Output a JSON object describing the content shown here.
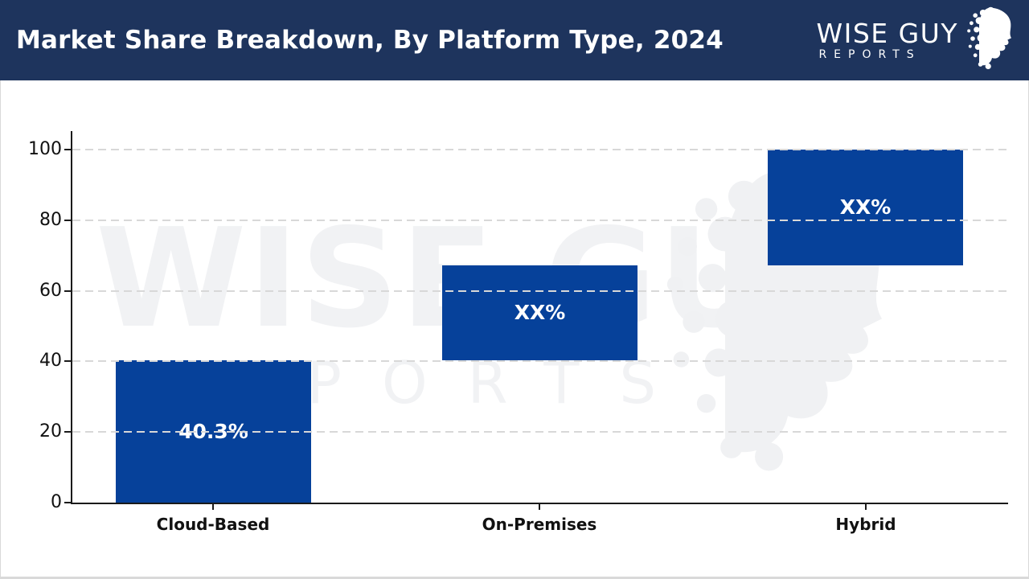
{
  "header": {
    "title": "Market Share Breakdown, By Platform Type, 2024",
    "bg_color": "#1e345d",
    "logo": {
      "line1": "WISE GUY",
      "line2": "REPORTS"
    }
  },
  "watermark": {
    "line1": "WISE GUY",
    "line2": "REPORTS"
  },
  "chart_data": {
    "type": "bar",
    "variant": "floating-segment-breakdown",
    "title": "Market Share Breakdown, By Platform Type, 2024",
    "categories": [
      "Cloud-Based",
      "On-Premises",
      "Hybrid"
    ],
    "segments": [
      {
        "category": "Cloud-Based",
        "label": "40.3%",
        "start": 0,
        "end": 40.3
      },
      {
        "category": "On-Premises",
        "label": "XX%",
        "start": 40.3,
        "end": 67.3
      },
      {
        "category": "Hybrid",
        "label": "XX%",
        "start": 67.3,
        "end": 100
      }
    ],
    "yticks": [
      "0",
      "20",
      "40",
      "60",
      "80",
      "100"
    ],
    "ylim": [
      0,
      105
    ],
    "grid": "horizontal-dashed",
    "grid_color": "#d8d8d8",
    "bar_color": "#06419a",
    "axis_color": "#1a1a1a",
    "legend": "none"
  }
}
